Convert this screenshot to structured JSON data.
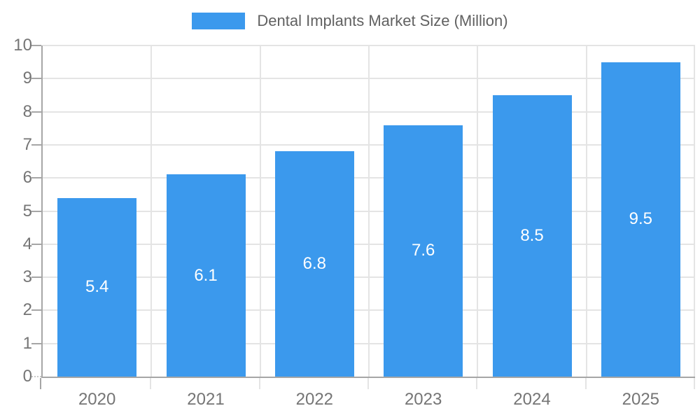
{
  "chart_data": {
    "type": "bar",
    "title": "Dental Implants Market Size (Million)",
    "series_name": "Dental Implants Market Size (Million)",
    "categories": [
      "2020",
      "2021",
      "2022",
      "2023",
      "2024",
      "2025"
    ],
    "values": [
      5.4,
      6.1,
      6.8,
      7.6,
      8.5,
      9.5
    ],
    "value_labels": [
      "5.4",
      "6.1",
      "6.8",
      "7.6",
      "8.5",
      "9.5"
    ],
    "xlabel": "",
    "ylabel": "",
    "ylim": [
      0,
      10
    ],
    "y_ticks": [
      0,
      1,
      2,
      3,
      4,
      5,
      6,
      7,
      8,
      9,
      10
    ],
    "y_tick_labels": [
      "0",
      "1",
      "2",
      "3",
      "4",
      "5",
      "6",
      "7",
      "8",
      "9",
      "10"
    ],
    "grid": true,
    "legend_position": "top-center",
    "colors": {
      "bar": "#3B99ED",
      "grid": "#e4e4e4",
      "axis": "#a6a6a6",
      "tick_label": "#757575",
      "legend_text": "#616161",
      "value_label": "#ffffff",
      "background": "#ffffff"
    }
  }
}
